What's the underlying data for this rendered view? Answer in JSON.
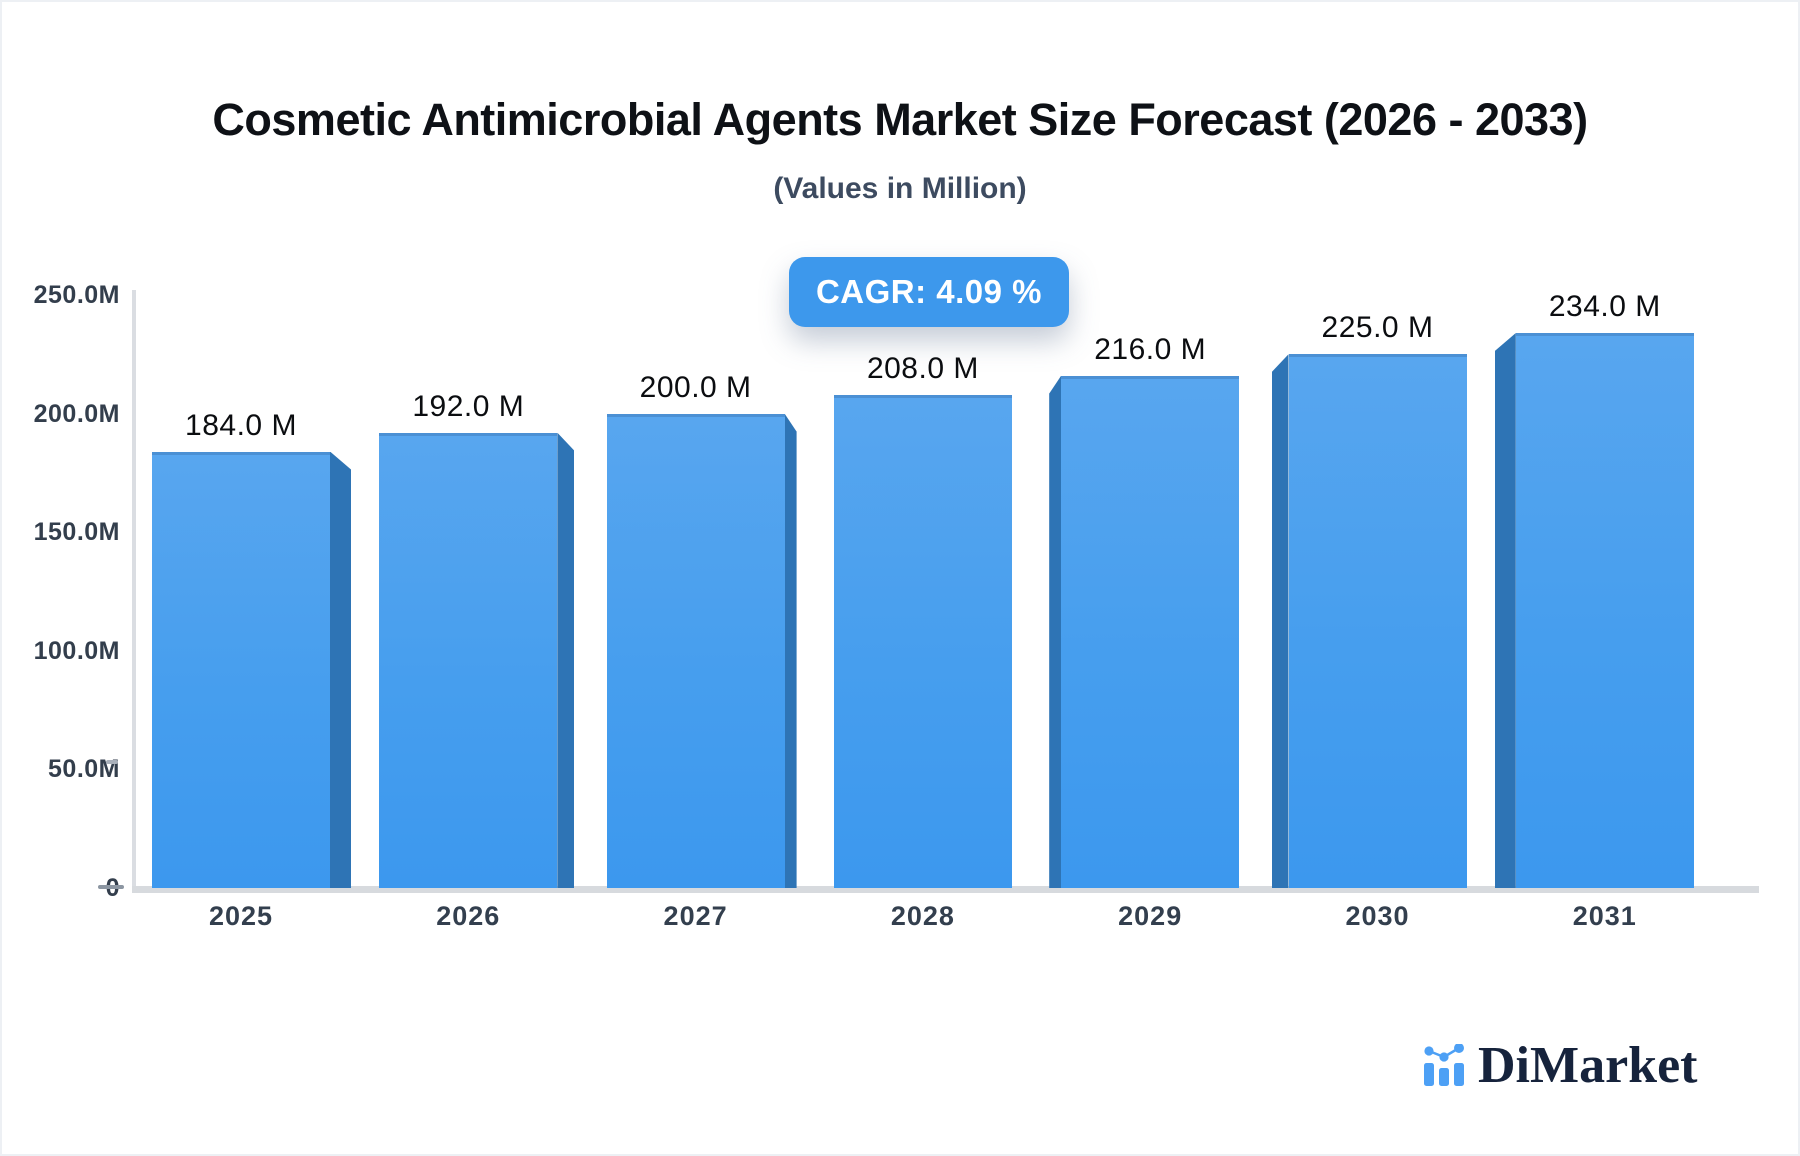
{
  "title": "Cosmetic Antimicrobial Agents Market Size Forecast (2026 - 2033)",
  "subtitle": "(Values in Million)",
  "badge": {
    "label": "CAGR: 4.09 %"
  },
  "chart_data": {
    "type": "bar",
    "categories": [
      "2025",
      "2026",
      "2027",
      "2028",
      "2029",
      "2030",
      "2031"
    ],
    "values": [
      184,
      192,
      200,
      208,
      216,
      225,
      234
    ],
    "value_labels": [
      "184.0 M",
      "192.0 M",
      "200.0 M",
      "208.0 M",
      "216.0 M",
      "225.0 M",
      "234.0 M"
    ],
    "title": "Cosmetic Antimicrobial Agents Market Size Forecast (2026 - 2033)",
    "xlabel": "",
    "ylabel": "",
    "ylim": [
      0,
      250
    ],
    "yticks": [
      {
        "label": "250.0M",
        "value": 250
      },
      {
        "label": "200.0M",
        "value": 200
      },
      {
        "label": "150.0M",
        "value": 150
      },
      {
        "label": "100.0M",
        "value": 100
      },
      {
        "label": "50.0M",
        "value": 50
      },
      {
        "label": "0",
        "value": 0
      }
    ],
    "grid": false,
    "legend": false,
    "bar_style": "3d-perspective",
    "colors": {
      "bar_top": "#58a6ef",
      "bar_bottom": "#3c98ee",
      "bar_side": "#2e74b5",
      "axis_line": "#dadde2",
      "baseline": "#d7dade",
      "badge_bg": "#3d98ec",
      "title_text": "#0e1116",
      "subtitle_text": "#3d4b60"
    }
  },
  "branding": {
    "name": "DiMarket",
    "icon": "bar-line-chart-logo",
    "accent": "#4da0f5",
    "text_color": "#16233c"
  }
}
